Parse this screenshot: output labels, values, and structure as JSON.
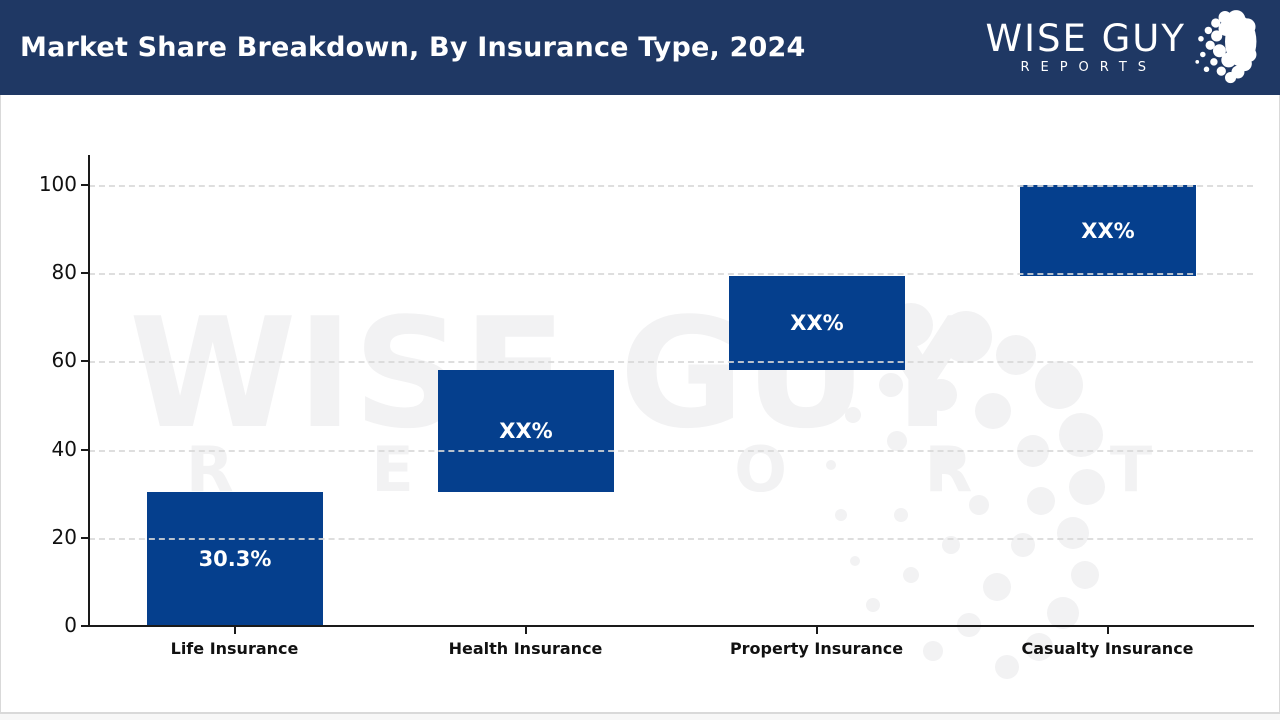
{
  "header": {
    "title": "Market Share Breakdown, By Insurance Type, 2024",
    "logo": {
      "line1": "WISE GUY",
      "line2": "REPORTS"
    }
  },
  "watermark": {
    "line1": "WISE GUY",
    "line2": "R E P O R T S"
  },
  "chart_data": {
    "type": "bar",
    "variant": "waterfall",
    "title": "Market Share Breakdown, By Insurance Type, 2024",
    "categories": [
      "Life Insurance",
      "Health Insurance",
      "Property Insurance",
      "Casualty Insurance"
    ],
    "segments": [
      {
        "category": "Life Insurance",
        "start": 0,
        "end": 30.3,
        "label": "30.3%"
      },
      {
        "category": "Health Insurance",
        "start": 30.3,
        "end": 58.1,
        "label": "XX%"
      },
      {
        "category": "Property Insurance",
        "start": 58.1,
        "end": 79.3,
        "label": "XX%"
      },
      {
        "category": "Casualty Insurance",
        "start": 79.3,
        "end": 100,
        "label": "XX%"
      }
    ],
    "ylim": [
      0,
      100
    ],
    "yticks": [
      0,
      20,
      40,
      60,
      80,
      100
    ],
    "xlabel": "",
    "ylabel": "",
    "grid": "horizontal dashed, drawn over bars",
    "legend": false,
    "bar_color": "#053f8d",
    "bar_label_color": "#ffffff",
    "colors": {
      "header_bg": "#1f3864",
      "axis": "#1a1a1a",
      "gridline": "#d9d9d9",
      "watermark": "#f2f2f3"
    }
  }
}
